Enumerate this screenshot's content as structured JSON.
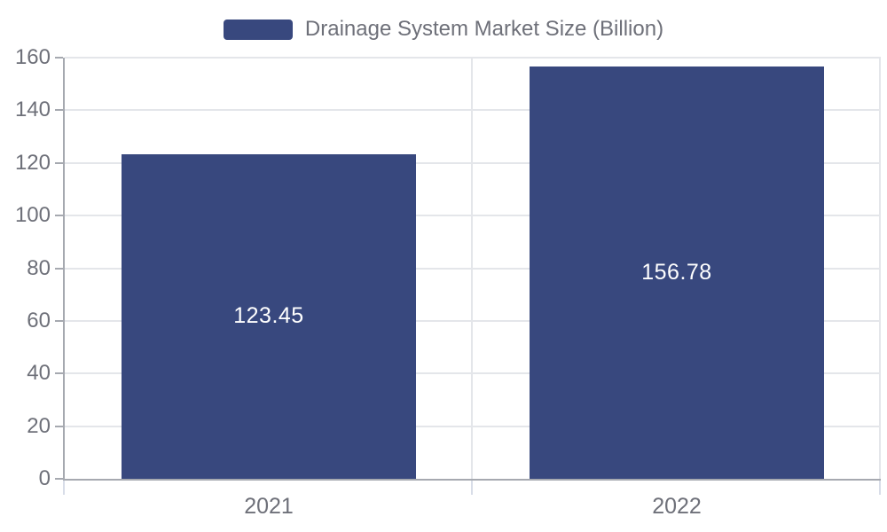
{
  "chart_data": {
    "type": "bar",
    "title": "",
    "legend": [
      "Drainage System Market Size (Billion)"
    ],
    "legend_position": "top-center",
    "categories": [
      "2021",
      "2022"
    ],
    "series": [
      {
        "name": "Drainage System Market Size (Billion)",
        "values": [
          123.45,
          156.78
        ]
      }
    ],
    "value_labels": [
      "123.45",
      "156.78"
    ],
    "xlabel": "",
    "ylabel": "",
    "ylim": [
      0,
      160
    ],
    "yticks": [
      0,
      20,
      40,
      60,
      80,
      100,
      120,
      140,
      160
    ],
    "grid": true,
    "colors": {
      "bar": "#38487E",
      "value_label": "#FFFFFF",
      "text": "#6E7079",
      "grid_line": "#E4E6EA",
      "axis_line": "#A6A9B0",
      "boundary_tick": "#D8DDE8",
      "background": "#FFFFFF"
    }
  }
}
